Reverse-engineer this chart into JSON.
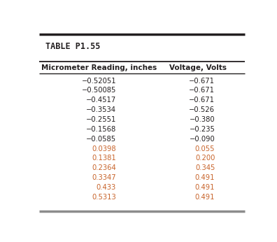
{
  "title": "TABLE P1.55",
  "col_headers": [
    "Micrometer Reading, inches",
    "Voltage, Volts"
  ],
  "micrometer": [
    "-0.52051",
    "-0.50085",
    "-0.4517",
    "-0.3534",
    "-0.2551",
    "-0.1568",
    "-0.0585",
    "0.0398",
    "0.1381",
    "0.2364",
    "0.3347",
    "0.433",
    "0.5313"
  ],
  "voltage": [
    "-0.671",
    "-0.671",
    "-0.671",
    "-0.526",
    "-0.380",
    "-0.235",
    "-0.090",
    "0.055",
    "0.200",
    "0.345",
    "0.491",
    "0.491",
    "0.491"
  ],
  "negative_color": "#231f20",
  "positive_color": "#c8642b",
  "header_color": "#231f20",
  "title_color": "#231f20",
  "background_color": "#ffffff",
  "top_bar_color": "#231f20",
  "bottom_bar_color": "#8c8c8c"
}
